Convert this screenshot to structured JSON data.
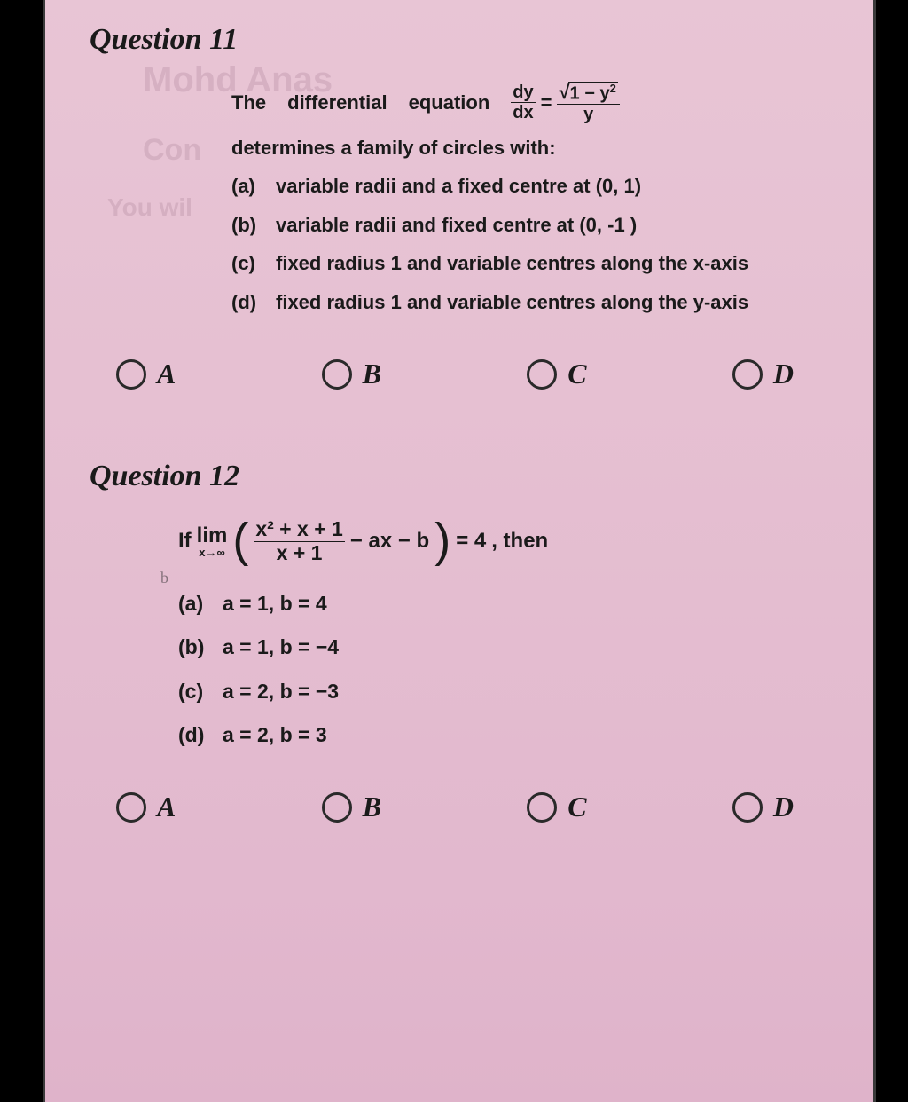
{
  "colors": {
    "page_bg_top": "#e8c5d5",
    "page_bg_bottom": "#dfb3ca",
    "frame_border": "#3a3a3a",
    "text": "#1a1a1a",
    "watermark": "rgba(180,140,160,0.35)",
    "radio_border": "#2a2a2a"
  },
  "typography": {
    "title_font": "Comic Sans MS, cursive",
    "title_size_pt": 26,
    "body_font": "Arial, sans-serif",
    "body_size_pt": 17,
    "body_weight": "bold",
    "radio_letter_size_pt": 24
  },
  "watermarks": {
    "name": "Mohd Anas",
    "status_prefix": "Con",
    "line3_prefix": "You wil"
  },
  "q11": {
    "title": "Question 11",
    "stem_words": {
      "w1": "The",
      "w2": "differential",
      "w3": "equation"
    },
    "equation": {
      "lhs_num": "dy",
      "lhs_den": "dx",
      "rhs_sqrt_arg": "1 − y",
      "rhs_sqrt_exp": "2",
      "rhs_den": "y"
    },
    "stem_line2": "determines a family of circles with:",
    "options": {
      "a": {
        "label": "(a)",
        "text": "variable radii and a fixed centre at (0, 1)"
      },
      "b": {
        "label": "(b)",
        "text": "variable radii and fixed centre at (0, -1 )"
      },
      "c": {
        "label": "(c)",
        "text": "fixed radius 1 and variable centres along the x-axis"
      },
      "d": {
        "label": "(d)",
        "text": "fixed radius 1 and variable centres along the y-axis"
      }
    }
  },
  "q12": {
    "title": "Question 12",
    "prefix": "If",
    "lim_top": "lim",
    "lim_bot": "x→∞",
    "frac_num": "x² + x + 1",
    "frac_den": "x + 1",
    "tail": "− ax − b",
    "rhs": "= 4",
    "suffix": ", then",
    "options": {
      "a": {
        "label": "(a)",
        "text": "a = 1, b = 4"
      },
      "b": {
        "label": "(b)",
        "text": "a = 1, b = −4"
      },
      "c": {
        "label": "(c)",
        "text": "a = 2, b = −3"
      },
      "d": {
        "label": "(d)",
        "text": "a = 2, b = 3"
      }
    }
  },
  "answers": {
    "A": "A",
    "B": "B",
    "C": "C",
    "D": "D"
  }
}
